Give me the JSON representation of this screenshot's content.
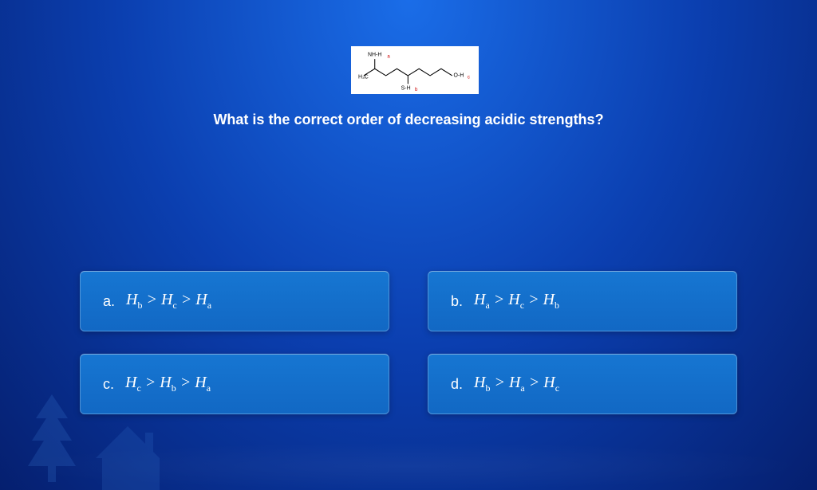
{
  "structure": {
    "labels": {
      "nh": "NH-H",
      "nh_sub": "a",
      "sh": "S-H",
      "sh_sub": "b",
      "oh": "O-H",
      "oh_sub": "c",
      "ch3": "H₃C"
    },
    "label_colors": {
      "a": "#cc0000",
      "b": "#cc0000",
      "c": "#cc0000",
      "main": "#000000"
    },
    "line_color": "#000000",
    "background": "#ffffff"
  },
  "question": "What is the correct order of decreasing acidic strengths?",
  "options": [
    {
      "letter": "a.",
      "html": "H<sub>b</sub> &gt; H<sub>c</sub> &gt; H<sub>a</sub>"
    },
    {
      "letter": "b.",
      "html": "H<sub>a</sub> &gt; H<sub>c</sub> &gt; H<sub>b</sub>"
    },
    {
      "letter": "c.",
      "html": "H<sub>c</sub> &gt; H<sub>b</sub> &gt; H<sub>a</sub>"
    },
    {
      "letter": "d.",
      "html": "H<sub>b</sub> &gt; H<sub>a</sub> &gt; H<sub>c</sub>"
    }
  ],
  "colors": {
    "body_gradient_inner": "#1a6de8",
    "body_gradient_mid": "#0b3fb0",
    "body_gradient_outer": "#051f6f",
    "option_bg_top": "#1676d2",
    "option_bg_bottom": "#1268c4",
    "text": "#ffffff"
  }
}
